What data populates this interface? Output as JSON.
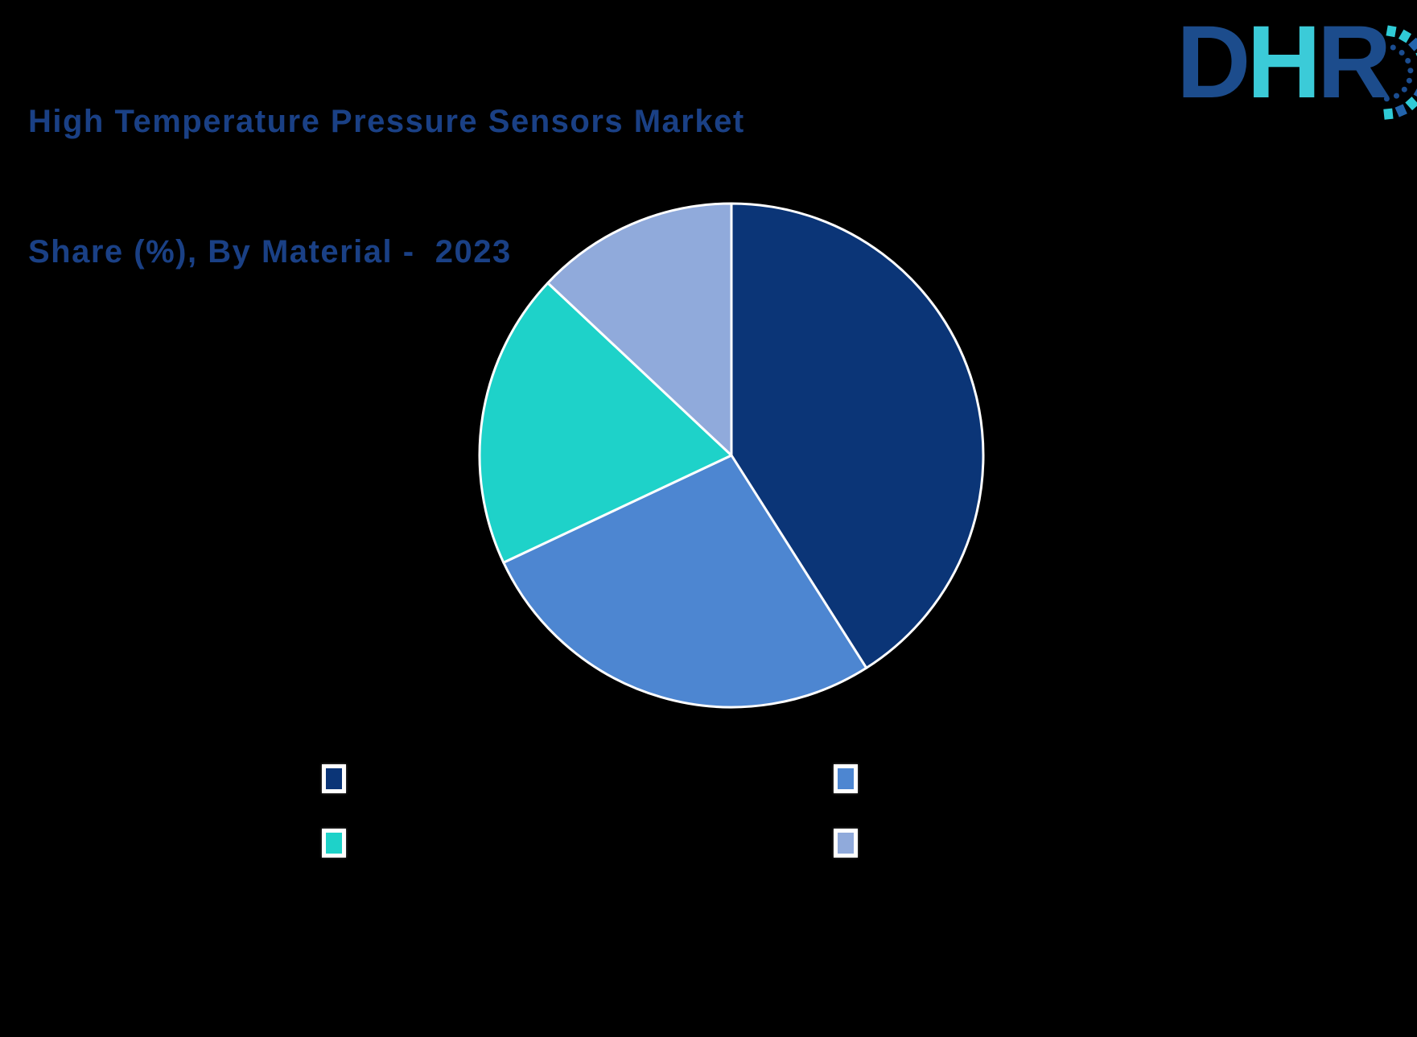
{
  "page": {
    "background_color": "#000000"
  },
  "title": {
    "line1": "High Temperature Pressure Sensors Market",
    "line2": "Share (%), By Material -  2023",
    "color": "#1A4085"
  },
  "logo": {
    "letters": [
      {
        "char": "D",
        "color": "#1C4C8C"
      },
      {
        "char": "H",
        "color": "#3BCBD8"
      },
      {
        "char": "R",
        "color": "#1C4C8C"
      }
    ],
    "outer_dot_colors": [
      "#2FCBD6",
      "#2FCBD6",
      "#2364AC",
      "#2FCBD6",
      "#2364AC",
      "#2FCBD6",
      "#2364AC",
      "#2FCBD6",
      "#2364AC",
      "#2FCBD6",
      "#2364AC"
    ],
    "inner_dot_color": "#1B4D90"
  },
  "chart_data": {
    "type": "pie",
    "title": "High Temperature Pressure Sensors Market Share (%), By Material - 2023",
    "values_unit": "%",
    "start_angle": "12-o'clock, clockwise",
    "value_labels_shown": false,
    "legend_labels_visible": false,
    "values_estimated_from_angles": true,
    "segments": [
      {
        "label": "",
        "value": 41,
        "color": "#0B3577"
      },
      {
        "label": "",
        "value": 27,
        "color": "#4D86D1"
      },
      {
        "label": "",
        "value": 19,
        "color": "#1ED2C9"
      },
      {
        "label": "",
        "value": 13,
        "color": "#90AADB"
      }
    ],
    "legend_position": "bottom 2x2 grid"
  },
  "legend": {
    "items": [
      {
        "label": "",
        "color": "#0B3577"
      },
      {
        "label": "",
        "color": "#4D86D1"
      },
      {
        "label": "",
        "color": "#1ED2C9"
      },
      {
        "label": "",
        "color": "#90AADB"
      }
    ]
  }
}
